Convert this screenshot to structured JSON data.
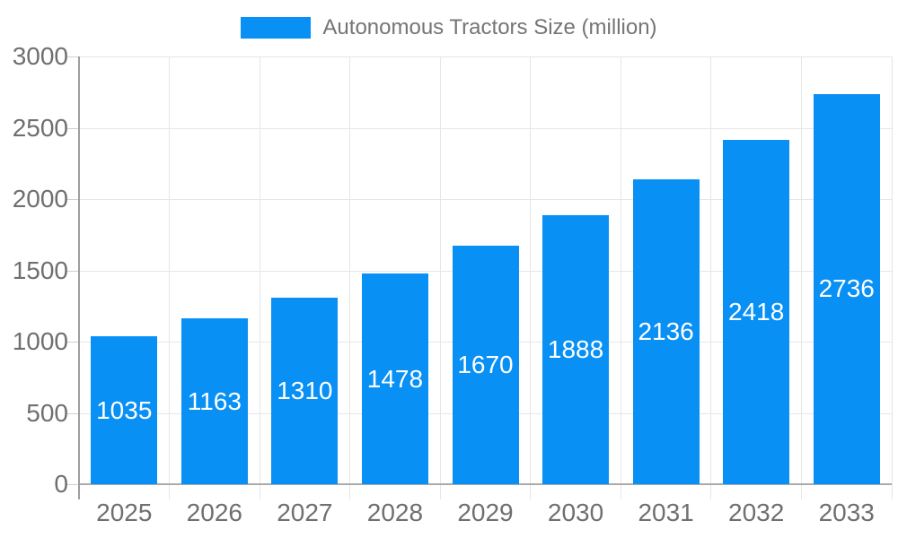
{
  "chart_data": {
    "type": "bar",
    "title": "Autonomous Tractors Size (million)",
    "categories": [
      "2025",
      "2026",
      "2027",
      "2028",
      "2029",
      "2030",
      "2031",
      "2032",
      "2033"
    ],
    "values": [
      1035,
      1163,
      1310,
      1478,
      1670,
      1888,
      2136,
      2418,
      2736
    ],
    "series": [
      {
        "name": "Autonomous Tractors Size (million)",
        "values": [
          1035,
          1163,
          1310,
          1478,
          1670,
          1888,
          2136,
          2418,
          2736
        ]
      }
    ],
    "xlabel": "",
    "ylabel": "",
    "ylim": [
      0,
      3000
    ],
    "y_ticks": [
      0,
      500,
      1000,
      1500,
      2000,
      2500,
      3000
    ],
    "grid": true,
    "legend_position": "top",
    "value_labels": "centered-inside-bars",
    "colors": {
      "bar": "#0990F5",
      "value_label": "#FFFFFF",
      "axis_text": "#6F6F6F",
      "legend_text": "#757575",
      "gridline": "#E6E6E6",
      "baseline": "#ABABAB",
      "axis_line": "#9E9E9E",
      "tick": "#CFCFCF"
    }
  }
}
